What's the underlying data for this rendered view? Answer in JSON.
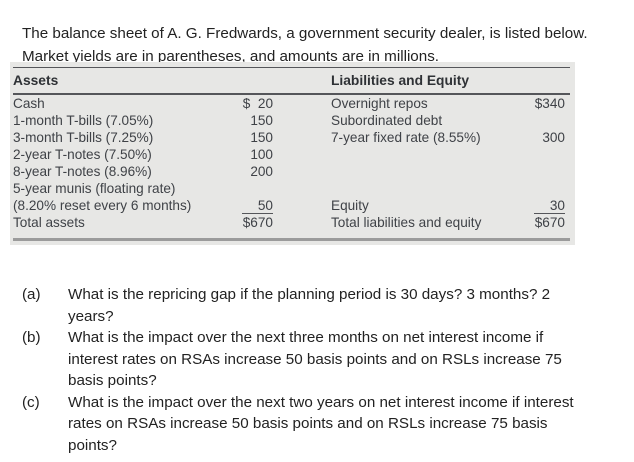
{
  "intro": "The balance sheet of A. G. Fredwards, a government security dealer, is listed below. Market yields are in parentheses, and amounts are in millions.",
  "balance_sheet": {
    "assets_header": "Assets",
    "liabilities_header": "Liabilities and Equity",
    "rows": [
      {
        "a_label": "Cash",
        "a_value": "$  20",
        "l_label": "Overnight repos",
        "l_value": "$340"
      },
      {
        "a_label": "1-month T-bills (7.05%)",
        "a_value": "150",
        "l_label": "Subordinated debt",
        "l_value": ""
      },
      {
        "a_label": "3-month T-bills (7.25%)",
        "a_value": "150",
        "l_label": "7-year fixed rate (8.55%)",
        "l_value": "300"
      },
      {
        "a_label": "2-year T-notes (7.50%)",
        "a_value": "100",
        "l_label": "",
        "l_value": ""
      },
      {
        "a_label": "8-year T-notes (8.96%)",
        "a_value": "200",
        "l_label": "",
        "l_value": ""
      },
      {
        "a_label": "5-year munis (floating rate)",
        "a_value": "",
        "l_label": "",
        "l_value": ""
      },
      {
        "a_label": "(8.20% reset every 6 months)",
        "a_value": "50",
        "l_label": "Equity",
        "l_value": "30"
      },
      {
        "a_label": "Total assets",
        "a_value": "$670",
        "l_label": "Total liabilities and equity",
        "l_value": "$670"
      }
    ]
  },
  "questions": [
    {
      "label": "(a)",
      "text": "What is the repricing gap if the planning period is 30 days? 3 months? 2 years?"
    },
    {
      "label": "(b)",
      "text": "What is the impact over the next three months on net interest income if interest rates on RSAs increase 50 basis points and on RSLs increase 75 basis points?"
    },
    {
      "label": "(c)",
      "text": "What is the impact over the next two years on net interest income if interest rates on RSAs increase 50 basis points and on RSLs increase 75 basis points?"
    }
  ],
  "colors": {
    "table_background": "#e7e7e5",
    "dark_rule": "#55565a",
    "bottom_rule": "#9b9b9b",
    "table_text": "#3f4247",
    "body_text": "#222222"
  }
}
